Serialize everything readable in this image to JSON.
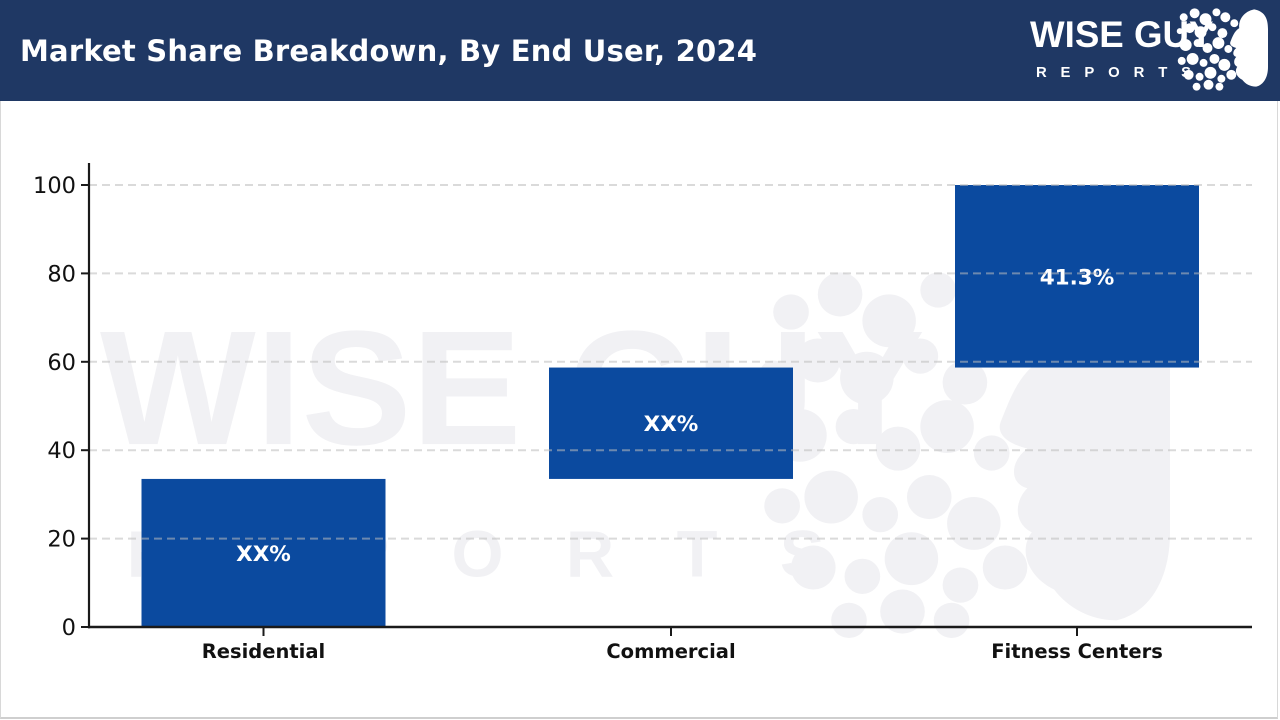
{
  "header": {
    "title": "Market Share Breakdown, By End User, 2024",
    "logo": {
      "line1": "WISE GUY",
      "line2": "REPORTS"
    }
  },
  "watermark": {
    "line1": "WISE GUY",
    "line2": "REPORTS"
  },
  "chart_data": {
    "type": "bar",
    "variant": "floating-segment (waterfall-style market share breakdown)",
    "title": "Market Share Breakdown, By End User, 2024",
    "categories": [
      "Residential",
      "Commercial",
      "Fitness Centers"
    ],
    "bars": [
      {
        "category": "Residential",
        "start": 0,
        "end": 33.5,
        "value": 33.5,
        "label": "XX%"
      },
      {
        "category": "Commercial",
        "start": 33.5,
        "end": 58.7,
        "value": 25.2,
        "label": "XX%"
      },
      {
        "category": "Fitness Centers",
        "start": 58.7,
        "end": 100,
        "value": 41.3,
        "label": "41.3%"
      }
    ],
    "xlabel": "",
    "ylabel": "",
    "yticks": [
      0,
      20,
      40,
      60,
      80,
      100
    ],
    "ylim": [
      0,
      105
    ],
    "grid": "horizontal dashed, drawn over bars",
    "legend": "none"
  },
  "colors": {
    "header_bg": "#1f3864",
    "bar": "#0b4a9f",
    "bar_label_text": "#ffffff",
    "axis": "#1a1a1a",
    "tick_text": "#111111",
    "gridline": "#bdbdbd",
    "watermark": "#f1f1f4",
    "title_text": "#ffffff"
  }
}
